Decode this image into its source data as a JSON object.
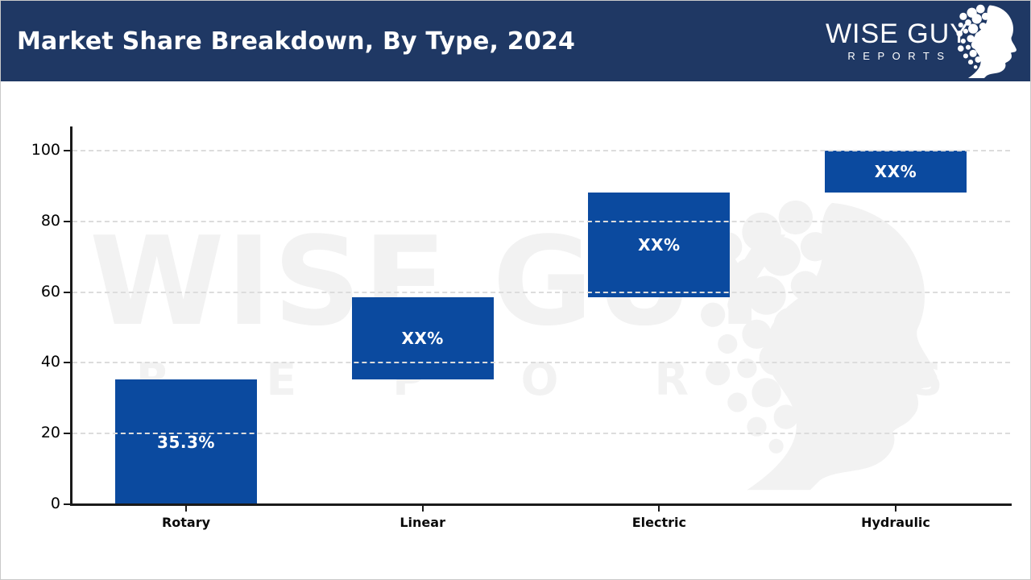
{
  "header": {
    "title": "Market Share Breakdown, By Type, 2024",
    "logo": {
      "line1": "WISE GUY",
      "line2": "REPORTS"
    }
  },
  "watermark": {
    "line1": "WISE GUY",
    "line2": "R E P O R T S"
  },
  "colors": {
    "header_bg": "#1f3864",
    "bar": "#0b4a9f",
    "bar_label": "#ffffff",
    "gridline": "#dcdcdc",
    "axis": "#1a1a1a",
    "watermark": "#f2f2f2",
    "page_border": "#c9c9c9"
  },
  "chart_data": {
    "type": "bar",
    "subtype": "waterfall",
    "title": "Market Share Breakdown, By Type, 2024",
    "categories": [
      "Rotary",
      "Linear",
      "Electric",
      "Hydraulic"
    ],
    "segments": [
      {
        "category": "Rotary",
        "start": 0,
        "end": 35.3,
        "label": "35.3%"
      },
      {
        "category": "Linear",
        "start": 35.3,
        "end": 58.5,
        "label": "XX%"
      },
      {
        "category": "Electric",
        "start": 58.5,
        "end": 88.2,
        "label": "XX%"
      },
      {
        "category": "Hydraulic",
        "start": 88.2,
        "end": 100,
        "label": "XX%"
      }
    ],
    "xlabel": "",
    "ylabel": "",
    "ylim": [
      0,
      107
    ],
    "yticks": [
      0,
      20,
      40,
      60,
      80,
      100
    ],
    "grid": "horizontal-dashed-over-bars",
    "legend": null
  }
}
